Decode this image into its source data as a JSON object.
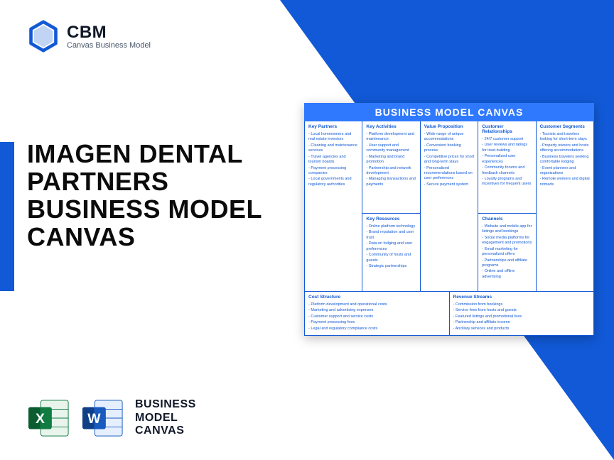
{
  "brand": {
    "name": "CBM",
    "tagline": "Canvas Business Model"
  },
  "title": "IMAGEN DENTAL PARTNERS BUSINESS MODEL CANVAS",
  "footer_label": "BUSINESS\nMODEL\nCANVAS",
  "canvas": {
    "title": "BUSINESS MODEL CANVAS",
    "colors": {
      "primary": "#1159d6",
      "header_bg": "#2f79ff",
      "text": "#1159d6",
      "card_bg": "#ffffff"
    },
    "sections": {
      "key_partners": {
        "label": "Key Partners",
        "items": [
          "Local homeowners and real estate investors",
          "Cleaning and maintenance services",
          "Travel agencies and tourism boards",
          "Payment processing companies",
          "Local governments and regulatory authorities"
        ]
      },
      "key_activities": {
        "label": "Key Activities",
        "items": [
          "Platform development and maintenance",
          "User support and community management",
          "Marketing and brand promotion",
          "Partnership and network development",
          "Managing transactions and payments"
        ]
      },
      "key_resources": {
        "label": "Key Resources",
        "items": [
          "Online platform technology",
          "Brand reputation and user trust",
          "Data on lodging and user preferences",
          "Community of hosts and guests",
          "Strategic partnerships"
        ]
      },
      "value_proposition": {
        "label": "Value Proposition",
        "items": [
          "Wide range of unique accommodations",
          "Convenient booking process",
          "Competitive prices for short and long-term stays",
          "Personalized recommendations based on user preferences",
          "Secure payment system"
        ]
      },
      "customer_relationships": {
        "label": "Customer Relationships",
        "items": [
          "24/7 customer support",
          "User reviews and ratings for trust-building",
          "Personalized user experiences",
          "Community forums and feedback channels",
          "Loyalty programs and incentives for frequent users"
        ]
      },
      "channels": {
        "label": "Channels",
        "items": [
          "Website and mobile app for listings and bookings",
          "Social media platforms for engagement and promotions",
          "Email marketing for personalized offers",
          "Partnerships and affiliate programs",
          "Online and offline advertising"
        ]
      },
      "customer_segments": {
        "label": "Customer Segments",
        "items": [
          "Tourists and travelers looking for short-term stays",
          "Property owners and hosts offering accommodations",
          "Business travelers seeking comfortable lodging",
          "Event planners and organizations",
          "Remote workers and digital nomads"
        ]
      },
      "cost_structure": {
        "label": "Cost Structure",
        "items": [
          "Platform development and operational costs",
          "Marketing and advertising expenses",
          "Customer support and service costs",
          "Payment processing fees",
          "Legal and regulatory compliance costs"
        ]
      },
      "revenue_streams": {
        "label": "Revenue Streams",
        "items": [
          "Commission from bookings",
          "Service fees from hosts and guests",
          "Featured listings and promotional fees",
          "Partnership and affiliate income",
          "Ancillary services and products"
        ]
      }
    }
  }
}
